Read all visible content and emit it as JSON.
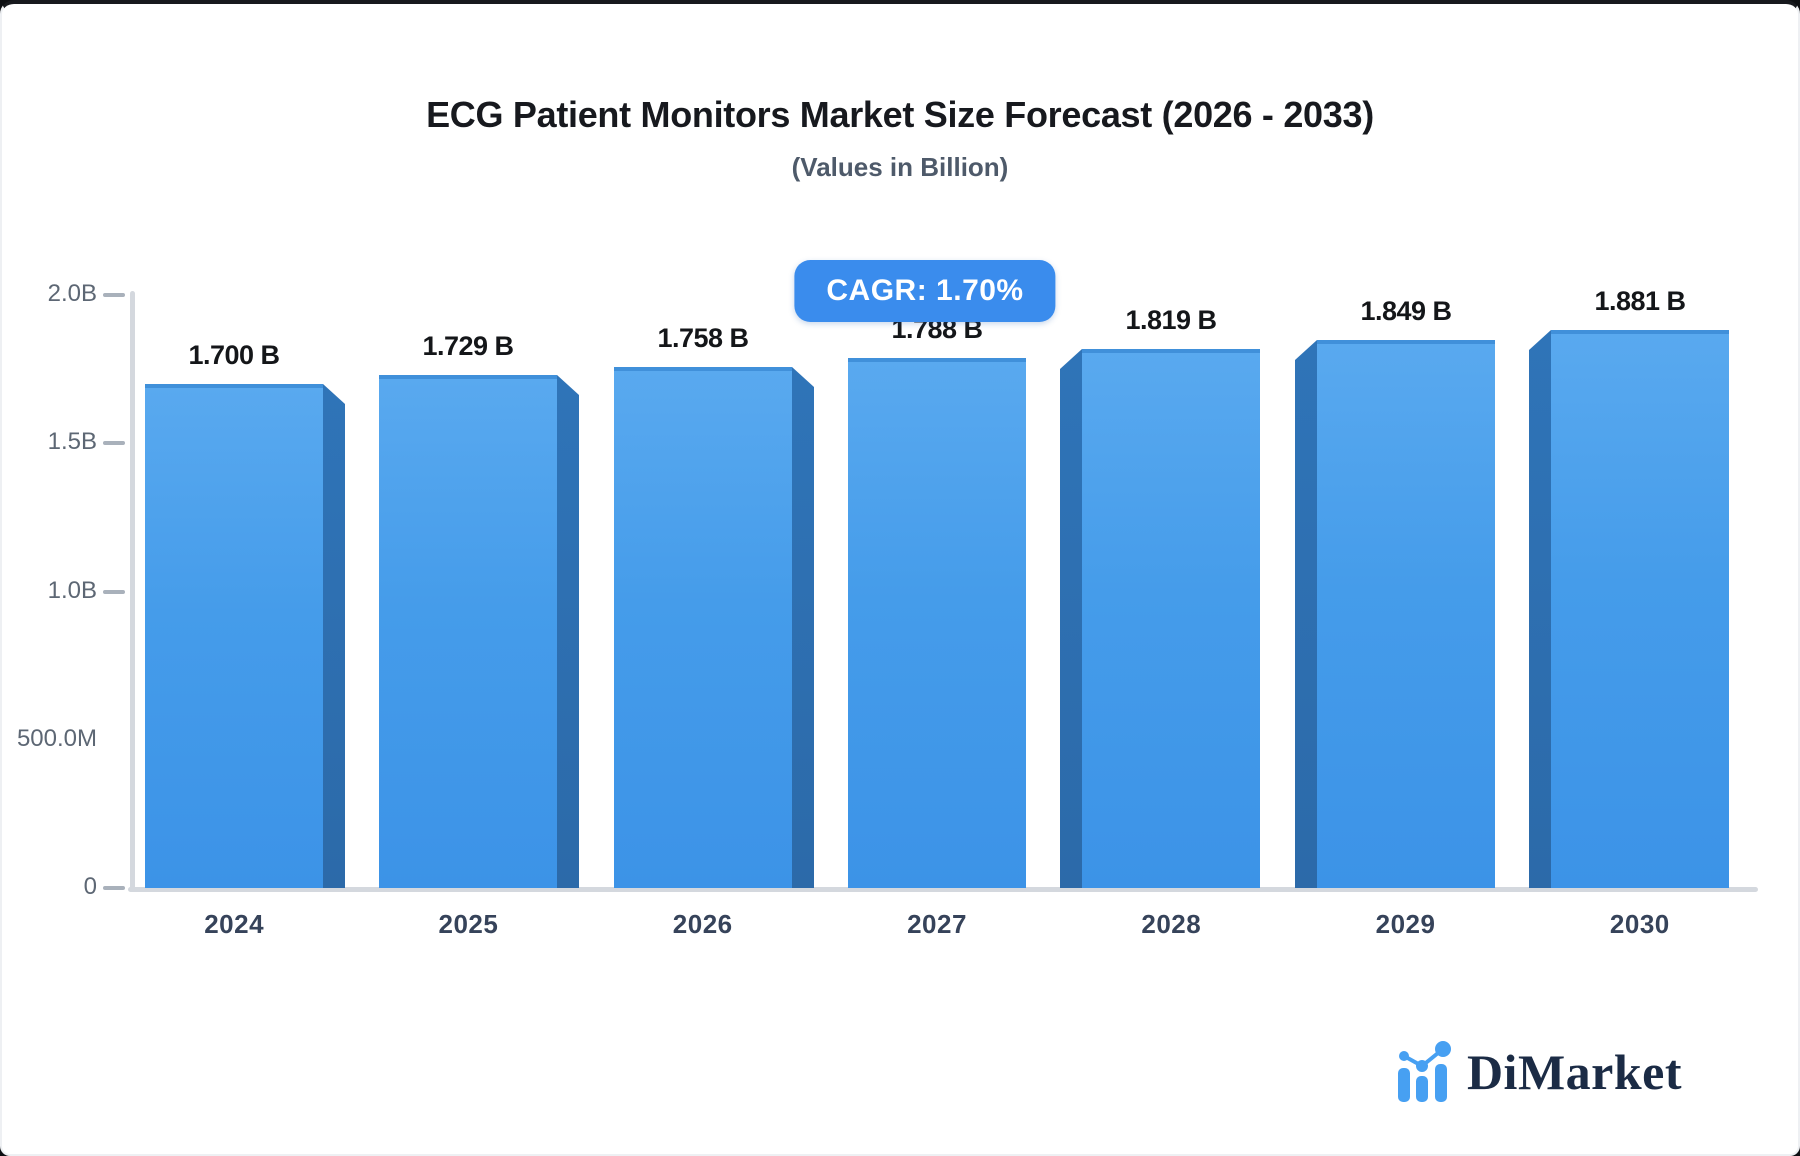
{
  "header": {
    "title": "ECG Patient Monitors Market Size Forecast (2026 - 2033)",
    "subtitle": "(Values in Billion)"
  },
  "cagr_badge": {
    "label": "CAGR: 1.70%"
  },
  "chart_data": {
    "type": "bar",
    "title": "ECG Patient Monitors Market Size Forecast (2026 - 2033)",
    "subtitle": "(Values in Billion)",
    "categories": [
      "2024",
      "2025",
      "2026",
      "2027",
      "2028",
      "2029",
      "2030"
    ],
    "values": [
      1.7,
      1.729,
      1.758,
      1.788,
      1.819,
      1.849,
      1.881
    ],
    "value_labels": [
      "1.700 B",
      "1.729 B",
      "1.758 B",
      "1.788 B",
      "1.819 B",
      "1.849 B",
      "1.881 B"
    ],
    "cagr": "1.70%",
    "xlabel": "",
    "ylabel": "",
    "ylim": [
      0,
      2.0
    ],
    "y_ticks": [
      {
        "label": "2.0B",
        "value": 2.0,
        "tick": true
      },
      {
        "label": "1.5B",
        "value": 1.5,
        "tick": true
      },
      {
        "label": "1.0B",
        "value": 1.0,
        "tick": true
      },
      {
        "label": "500.0M",
        "value": 0.5,
        "tick": false
      },
      {
        "label": "0",
        "value": 0.0,
        "tick": true
      }
    ],
    "grid": false,
    "legend_position": "none",
    "bar_style": "3d-perspective-toward-center"
  },
  "colors": {
    "bar_face": "#459cea",
    "bar_side": "#2e72b5",
    "axis_line": "#d4d8de",
    "badge_background": "#3a8ced",
    "badge_text": "#ffffff",
    "title_text": "#17191e",
    "subtitle_text": "#4e5a6a",
    "brand_text": "#1b2b45",
    "brand_icon_blue": "#47a0f2"
  },
  "branding": {
    "logo_text": "DiMarket",
    "logo_icon": "bar-chart-line-icon"
  }
}
